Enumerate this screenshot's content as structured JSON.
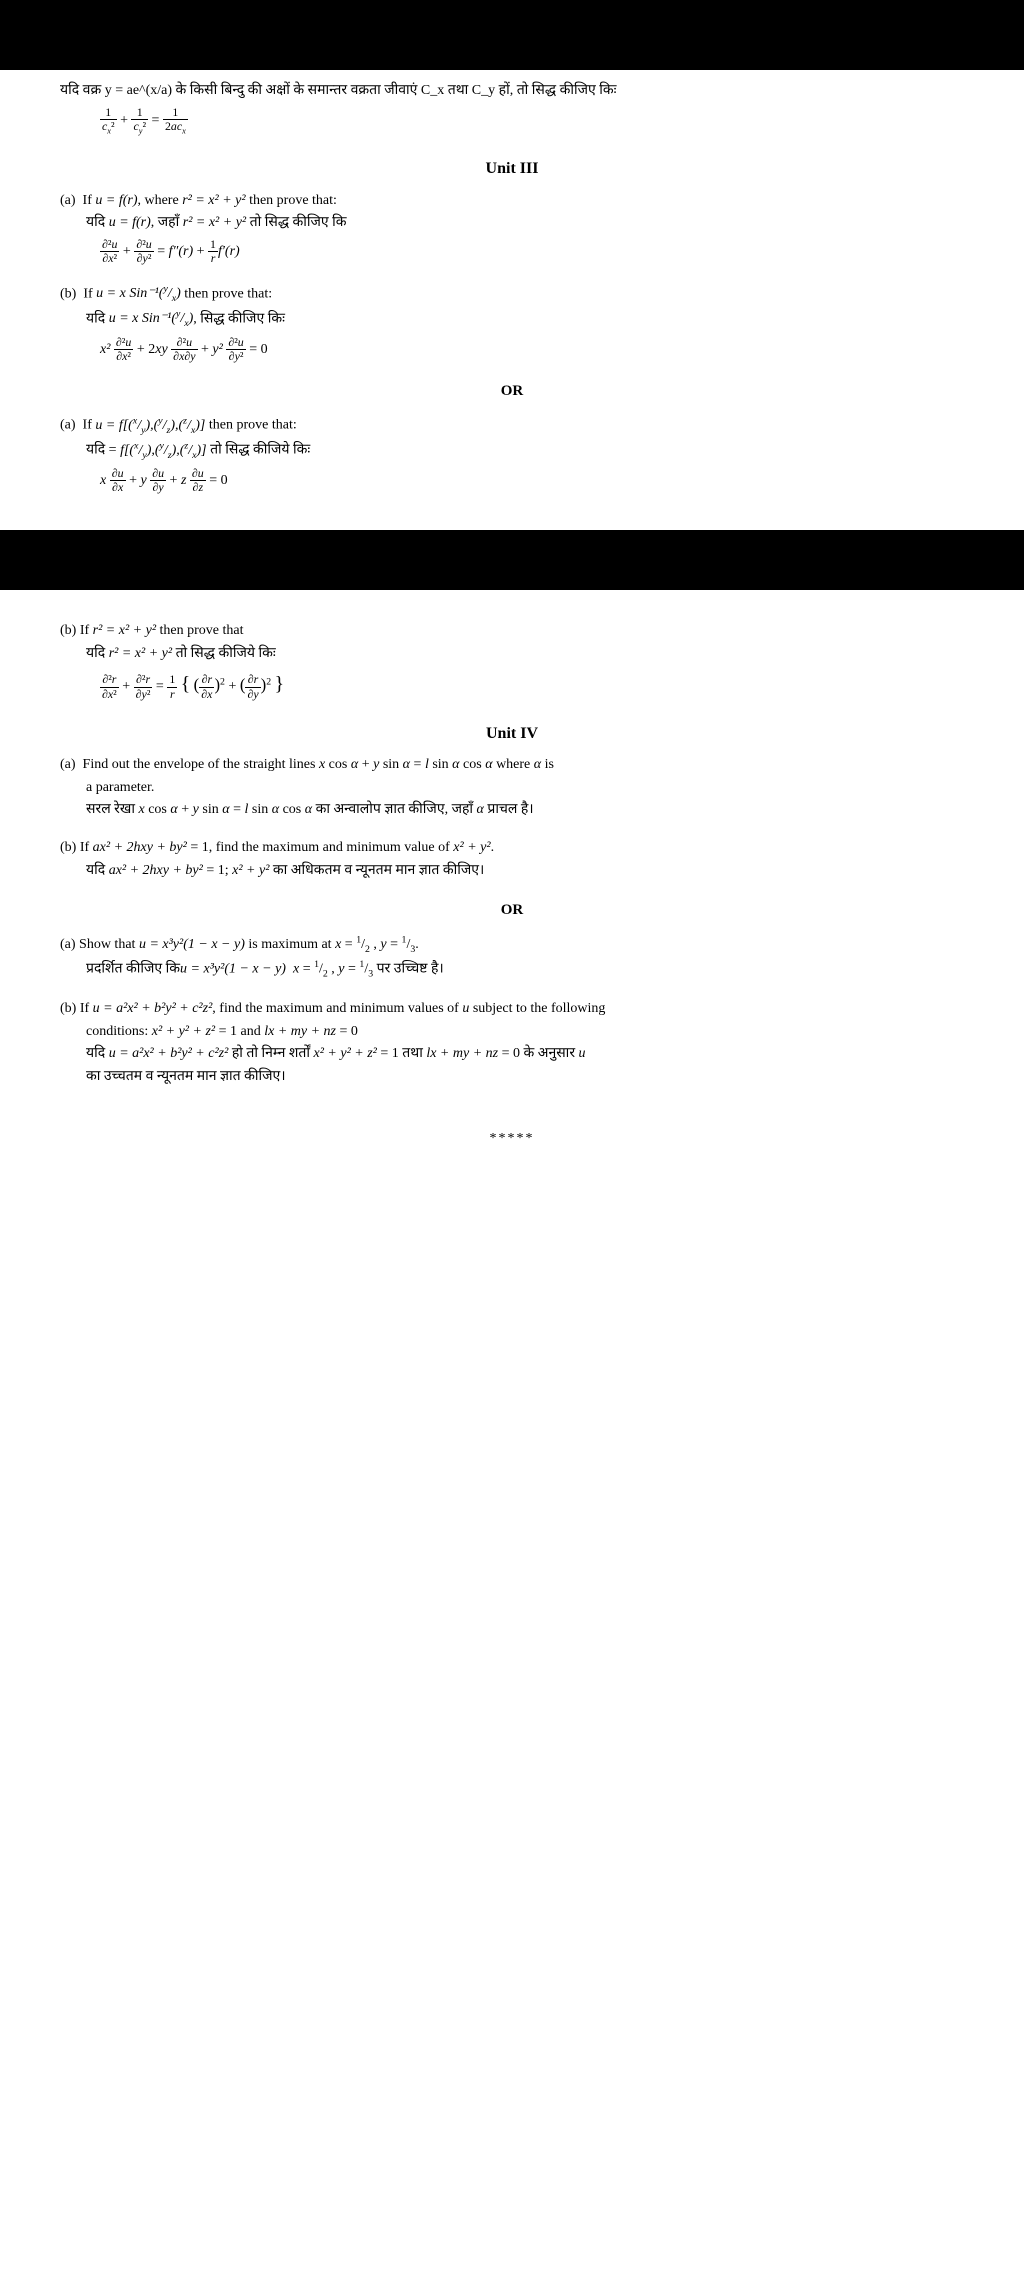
{
  "page1": {
    "top_line": "यदि वक्र y = ae^(x/a) के किसी बिन्दु की अक्षों के समान्तर वक्रता जीवाएं C_x तथा C_y हों, तो सिद्ध कीजिए किः",
    "top_formula": "1/c_x² + 1/c_y² = 1/(2ac_x)",
    "unit3_title": "Unit III",
    "q_a_en": "(a)  If u = f(r), where r² = x² + y² then prove that:",
    "q_a_hi": "यदि u = f(r), जहाँ r² = x² + y² तो सिद्ध कीजिए कि",
    "q_a_formula": "∂²u/∂x² + ∂²u/∂y² = f″(r) + (1/r)f′(r)",
    "q_b_en": "(b)  If u = x Sin⁻¹(y/x) then prove that:",
    "q_b_hi": "यदि u = x Sin⁻¹(y/x), सिद्ध कीजिए किः",
    "q_b_formula": "x² ∂²u/∂x² + 2xy ∂²u/∂x∂y + y² ∂²u/∂y² = 0",
    "or": "OR",
    "q_a2_en": "(a)  If u = f[(x/y),(y/z),(z/x)] then prove that:",
    "q_a2_hi": "यदि = f[(x/y),(y/z),(z/x)] तो सिद्ध कीजिये किः",
    "q_a2_formula": "x ∂u/∂x + y ∂u/∂y + z ∂u/∂z = 0"
  },
  "page2": {
    "q_b_en": "(b) If r² = x² + y² then prove that",
    "q_b_hi": "यदि r² = x² + y² तो सिद्ध कीजिये किः",
    "q_b_formula": "∂²r/∂x² + ∂²r/∂y² = (1/r){(∂r/∂x)² + (∂r/∂y)²}",
    "unit4_title": "Unit IV",
    "q_a_en_l1": "(a)  Find out the envelope of the straight lines x cos α + y sin α = l sin α cos α where α is",
    "q_a_en_l2": "a parameter.",
    "q_a_hi": "सरल रेखा x cos α + y sin α = l sin α cos α का अन्वालोप ज्ञात कीजिए, जहाँ α प्राचल है।",
    "q_b2_en": "(b) If ax² + 2hxy + by² = 1, find the maximum and minimum value of x² + y².",
    "q_b2_hi": "यदि ax² + 2hxy + by² = 1; x² + y² का अधिकतम व न्यूनतम मान ज्ञात कीजिए।",
    "or": "OR",
    "q_a2_en": "(a) Show that u = x³y²(1 − x − y) is maximum at x = ½ , y = ⅓.",
    "q_a2_hi": "प्रदर्शित कीजिए किu = x³y²(1 − x − y)   x = ½ , y = ⅓ पर उच्चिष्ट है।",
    "q_b3_en_l1": "(b) If u = a²x² + b²y² + c²z², find the maximum and minimum values of u subject to the following",
    "q_b3_en_l2": "conditions: x² + y² + z² = 1 and lx + my + nz = 0",
    "q_b3_hi_l1": "यदि u = a²x² + b²y² + c²z² हो तो निम्न शर्तों x² + y² + z² = 1 तथा lx + my + nz = 0 के अनुसार u",
    "q_b3_hi_l2": "का उच्चतम व न्यूनतम मान ज्ञात कीजिए।",
    "stars": "*****"
  }
}
